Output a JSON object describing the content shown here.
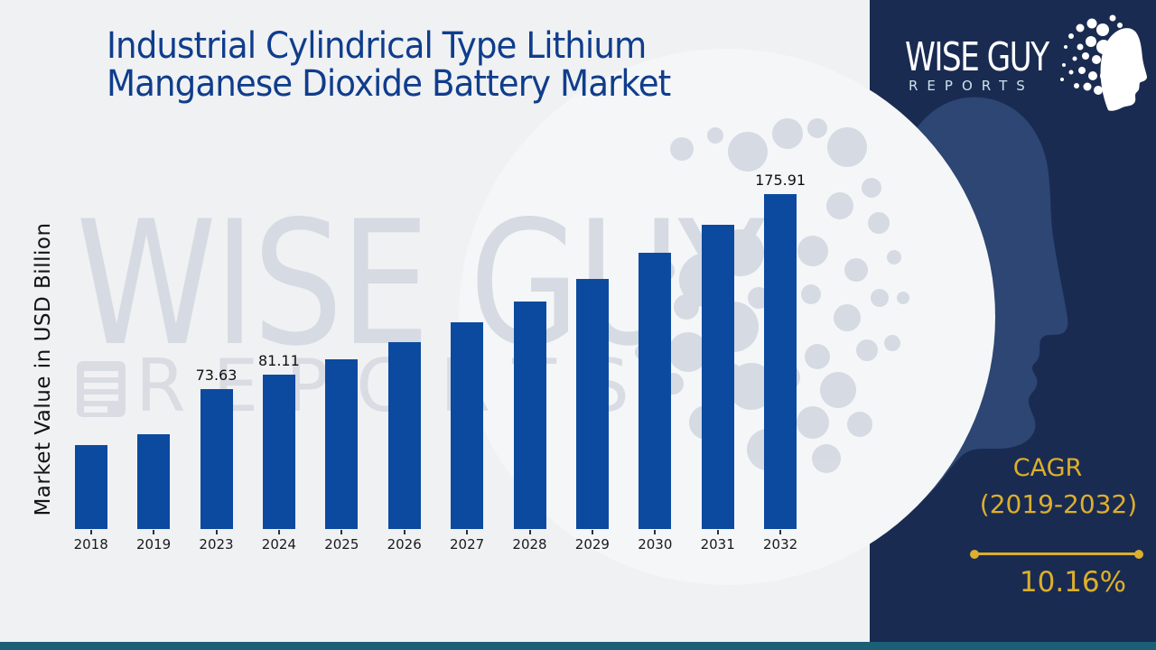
{
  "title": {
    "line1": "Industrial Cylindrical Type Lithium",
    "line2": "Manganese Dioxide Battery Market"
  },
  "logo": {
    "name": "WISE GUY",
    "sub": "REPORTS"
  },
  "watermark": {
    "name": "WISE GUY",
    "sub": "REPORTS"
  },
  "cagr": {
    "heading": "CAGR",
    "range": "(2019-2032)",
    "value": "10.16%"
  },
  "chart_data": {
    "type": "bar",
    "title": "Industrial Cylindrical Type Lithium Manganese Dioxide Battery Market",
    "xlabel": "",
    "ylabel": "Market Value in USD Billion",
    "categories": [
      "2018",
      "2019",
      "2023",
      "2024",
      "2025",
      "2026",
      "2027",
      "2028",
      "2029",
      "2030",
      "2031",
      "2032"
    ],
    "values": [
      44.2,
      49.94,
      73.63,
      81.11,
      89.35,
      98.43,
      108.43,
      119.45,
      131.58,
      144.95,
      159.68,
      175.91
    ],
    "data_labels": [
      "",
      "",
      "73.63",
      "81.11",
      "",
      "",
      "",
      "",
      "",
      "",
      "",
      "175.91"
    ],
    "unit": "USD Billion",
    "bar_color": "#0c4aa0",
    "grid": false,
    "legend": "none",
    "ylim": [
      0,
      190
    ]
  },
  "colors": {
    "background": "#f0f1f3",
    "panel_navy": "#1a2b52",
    "face_navy": "#2d4673",
    "bar_blue": "#0c4aa0",
    "title_blue": "#0f3d8c",
    "gold": "#dcaf2c",
    "teal_strip": "#1b5f77",
    "watermark_gray": "#d6dae2"
  }
}
